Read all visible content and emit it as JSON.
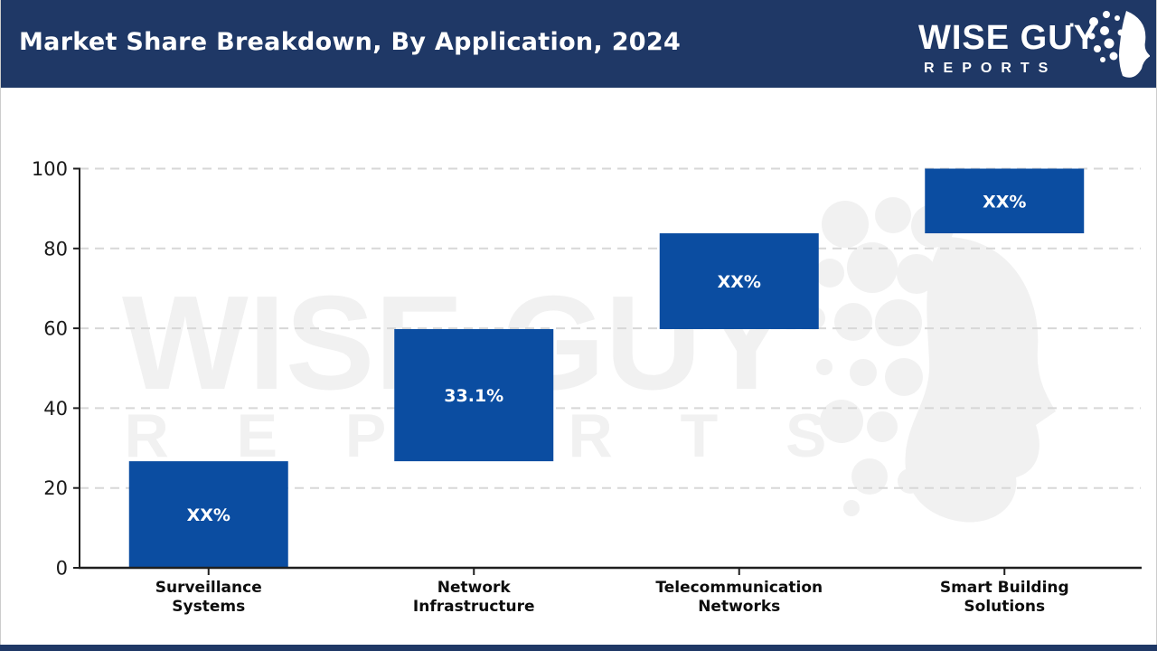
{
  "header": {
    "title": "Market Share Breakdown, By Application, 2024",
    "logo": {
      "line1": "WISE GUY",
      "line2": "REPORTS"
    }
  },
  "watermark": {
    "line1": "WISE GUY",
    "line2": "R E P O R T S",
    "color": "#f1f1f1"
  },
  "chart_data": {
    "type": "bar",
    "subtype": "waterfall-stacked-breakdown",
    "title": "Market Share Breakdown, By Application, 2024",
    "categories": [
      "Surveillance\nSystems",
      "Network\nInfrastructure",
      "Telecommunication\nNetworks",
      "Smart Building\nSolutions"
    ],
    "segments": [
      {
        "category": "Surveillance Systems",
        "from": 0,
        "to": 26.7,
        "size": 26.7,
        "label": "XX%"
      },
      {
        "category": "Network Infrastructure",
        "from": 26.7,
        "to": 59.8,
        "size": 33.1,
        "label": "33.1%"
      },
      {
        "category": "Telecommunication Networks",
        "from": 59.8,
        "to": 83.8,
        "size": 24.0,
        "label": "XX%"
      },
      {
        "category": "Smart Building Solutions",
        "from": 83.8,
        "to": 100,
        "size": 16.2,
        "label": "XX%"
      }
    ],
    "ylim": [
      0,
      100
    ],
    "yticks": [
      0,
      20,
      40,
      60,
      80,
      100
    ],
    "xlabel": "",
    "ylabel": "",
    "grid": "horizontal-dashed",
    "legend": "none",
    "bar_color": "#0b4da1",
    "bar_label_color": "#ffffff"
  },
  "colors": {
    "header_bg": "#1f3866",
    "footer_bg": "#1f3866",
    "axis": "#1f1f1f",
    "gridline": "#d7d7d7",
    "tick_label": "#1a1a1a",
    "category_label": "#0d0d0d"
  }
}
